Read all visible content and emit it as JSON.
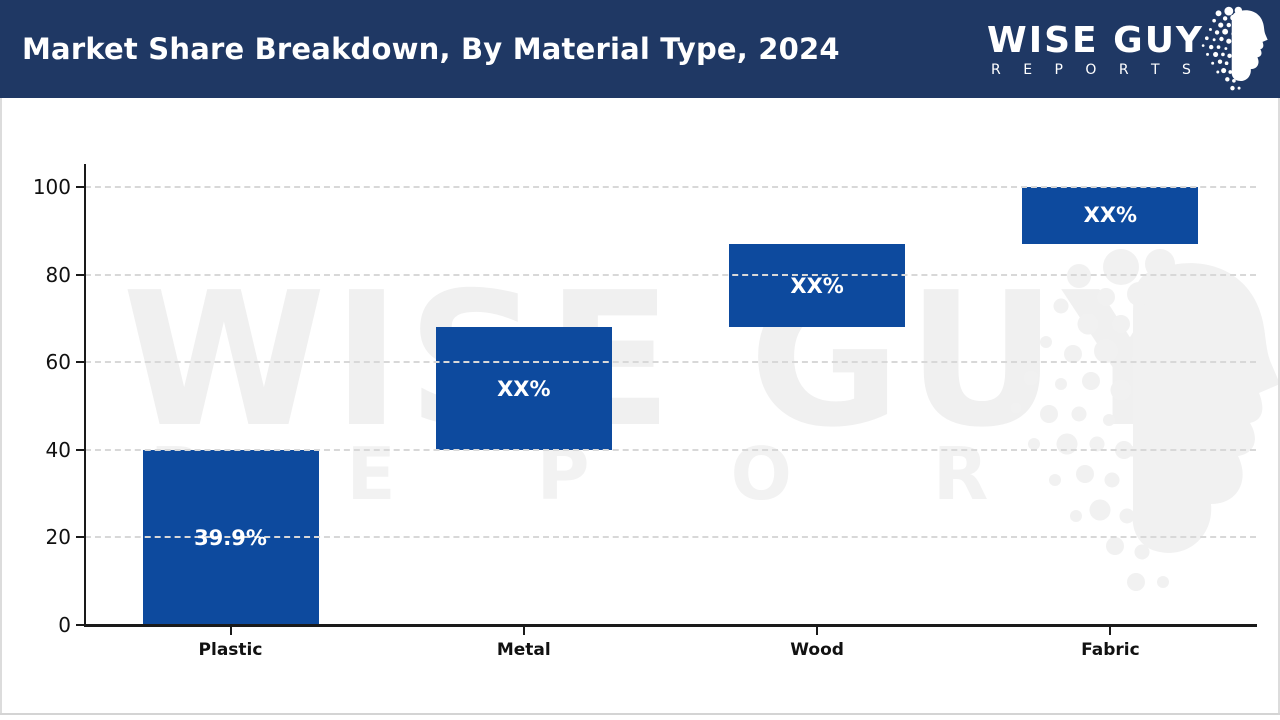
{
  "header": {
    "title": "Market Share Breakdown, By Material Type, 2024",
    "bg_color": "#1f3864",
    "logo": {
      "line1": "WISE GUY",
      "line2": "R E P O R T S"
    }
  },
  "watermark": {
    "line1": "WISE GUY",
    "line2": "R E P O R T S"
  },
  "chart_data": {
    "type": "bar",
    "subtype": "waterfall",
    "title": "Market Share Breakdown, By Material Type, 2024",
    "xlabel": "",
    "ylabel": "",
    "categories": [
      "Plastic",
      "Metal",
      "Wood",
      "Fabric"
    ],
    "series": [
      {
        "name": "Market Share (%)",
        "segments": [
          {
            "category": "Plastic",
            "start": 0,
            "end": 39.9,
            "label": "39.9%"
          },
          {
            "category": "Metal",
            "start": 39.9,
            "end": 68,
            "label": "XX%"
          },
          {
            "category": "Wood",
            "start": 68,
            "end": 87,
            "label": "XX%"
          },
          {
            "category": "Fabric",
            "start": 87,
            "end": 100,
            "label": "XX%"
          }
        ]
      }
    ],
    "yticks": [
      0,
      20,
      40,
      60,
      80,
      100
    ],
    "ylim": [
      0,
      105
    ],
    "grid": "horizontal-dashed",
    "legend": "none",
    "bar_color": "#0d4a9e",
    "bar_label_color": "#ffffff",
    "axis_color": "#1a1a1a",
    "grid_color": "#d8d8d8"
  }
}
